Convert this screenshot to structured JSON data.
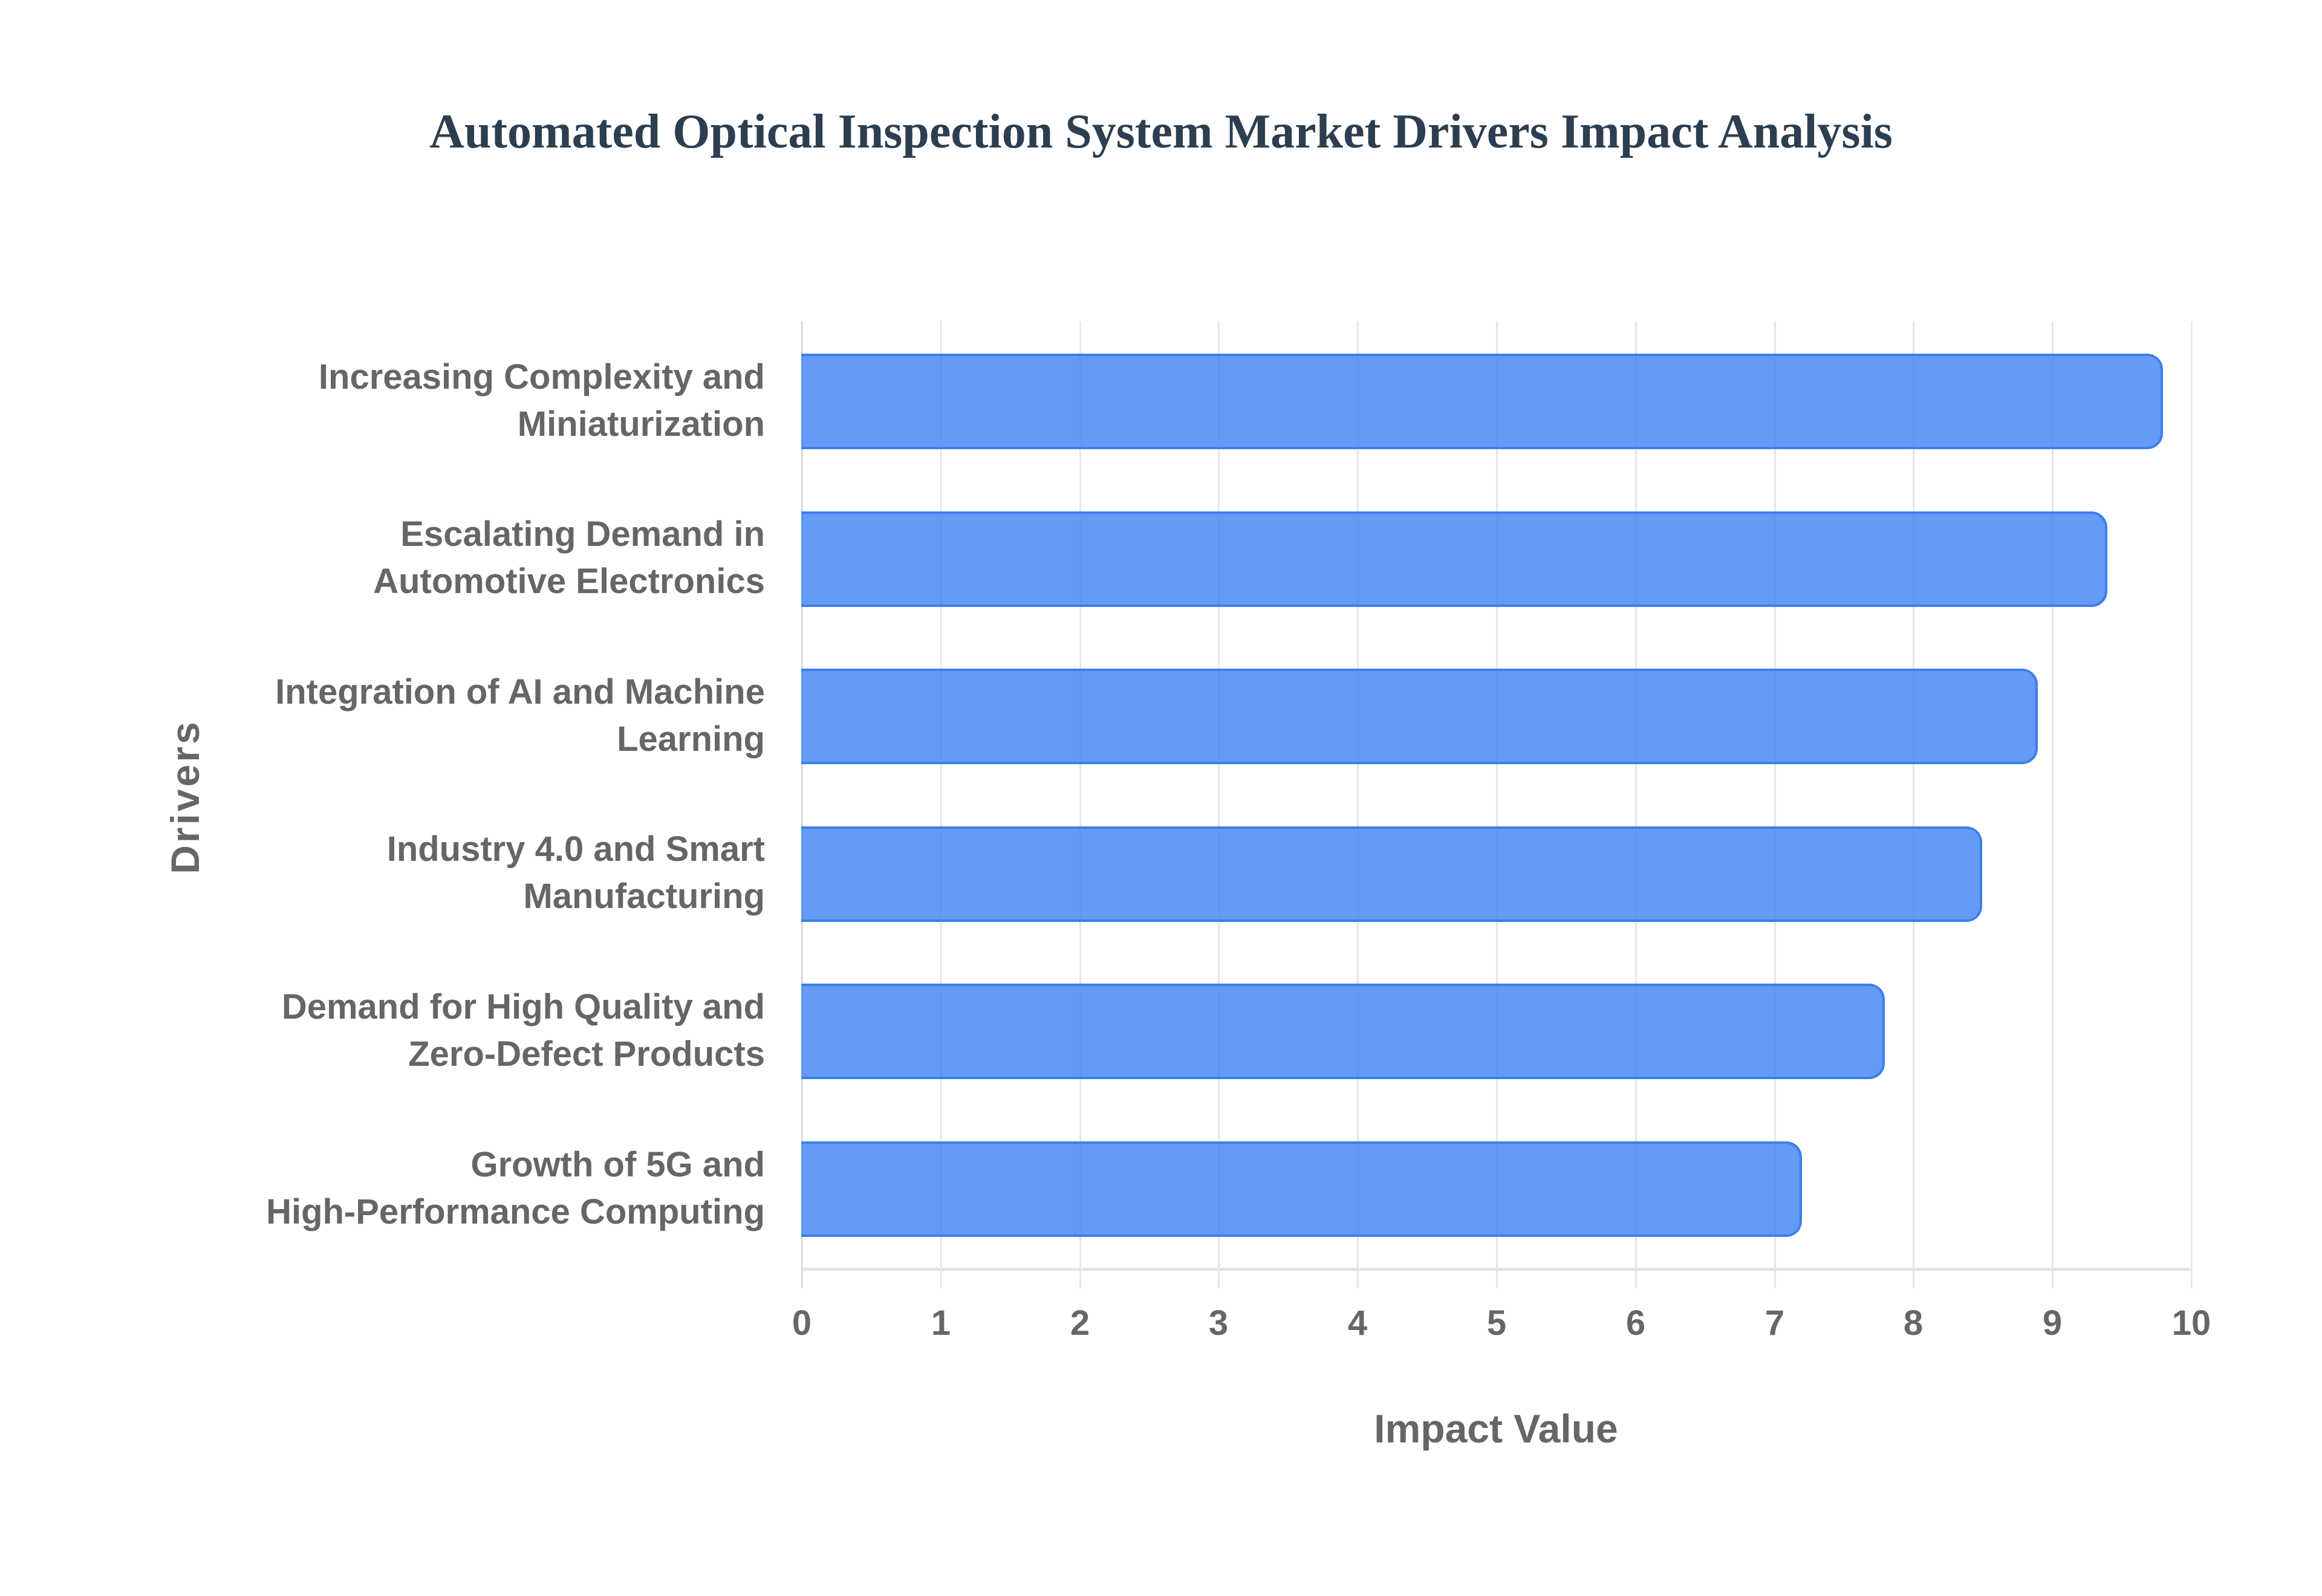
{
  "chart": {
    "title": "Automated Optical Inspection System Market Drivers Impact Analysis",
    "x_axis_title": "Impact Value",
    "y_axis_title": "Drivers",
    "x_ticks": [
      "0",
      "1",
      "2",
      "3",
      "4",
      "5",
      "6",
      "7",
      "8",
      "9",
      "10"
    ],
    "bar_color": "#4285f4",
    "bars": [
      {
        "label_line1": "Increasing Complexity and",
        "label_line2": "Miniaturization",
        "value": 9.8
      },
      {
        "label_line1": "Escalating Demand in",
        "label_line2": "Automotive Electronics",
        "value": 9.4
      },
      {
        "label_line1": "Integration of AI and Machine",
        "label_line2": "Learning",
        "value": 8.9
      },
      {
        "label_line1": "Industry 4.0 and Smart",
        "label_line2": "Manufacturing",
        "value": 8.5
      },
      {
        "label_line1": "Demand for High Quality and",
        "label_line2": "Zero-Defect Products",
        "value": 7.8
      },
      {
        "label_line1": "Growth of 5G and",
        "label_line2": "High-Performance Computing",
        "value": 7.2
      }
    ]
  },
  "chart_data": {
    "type": "bar",
    "orientation": "horizontal",
    "title": "Automated Optical Inspection System Market Drivers Impact Analysis",
    "xlabel": "Impact Value",
    "ylabel": "Drivers",
    "categories": [
      "Increasing Complexity and Miniaturization",
      "Escalating Demand in Automotive Electronics",
      "Integration of AI and Machine Learning",
      "Industry 4.0 and Smart Manufacturing",
      "Demand for High Quality and Zero-Defect Products",
      "Growth of 5G and High-Performance Computing"
    ],
    "values": [
      9.8,
      9.4,
      8.9,
      8.5,
      7.8,
      7.2
    ],
    "xlim": [
      0,
      10
    ],
    "x_ticks": [
      0,
      1,
      2,
      3,
      4,
      5,
      6,
      7,
      8,
      9,
      10
    ],
    "grid": {
      "vertical": true,
      "horizontal": false
    },
    "legend": null,
    "color": "#4285f4"
  }
}
